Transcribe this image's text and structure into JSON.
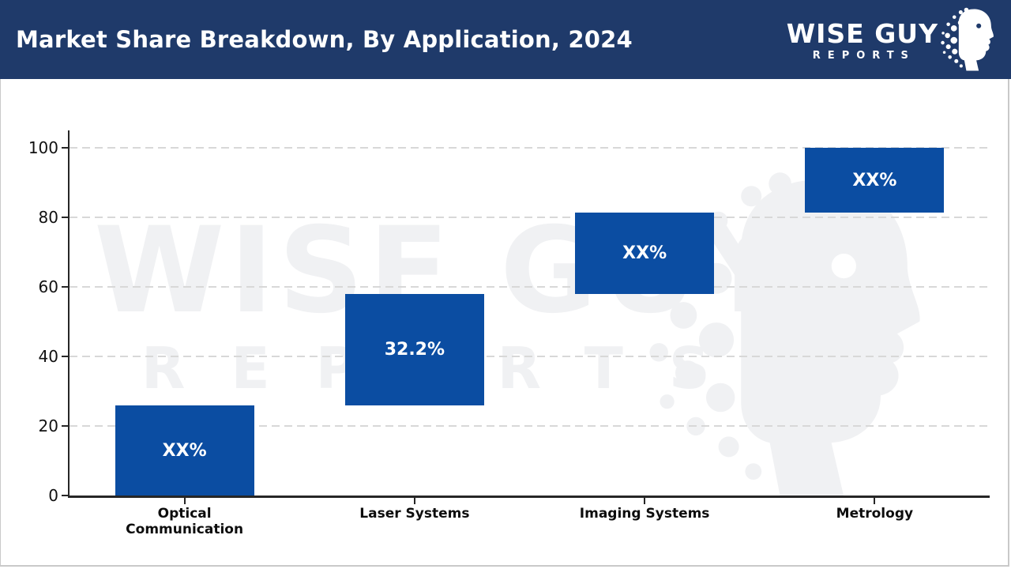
{
  "header": {
    "title": "Market Share Breakdown, By Application, 2024",
    "logo": {
      "line1": "WISE GUY",
      "line2": "REPORTS"
    }
  },
  "watermark": {
    "line1": "WISE GUY",
    "line2": "REPORTS"
  },
  "colors": {
    "header_bg": "#1f3a6a",
    "bar": "#0b4da2",
    "bar_label": "#ffffff",
    "grid": "#d8d8d8",
    "axis": "#262626",
    "tick_text": "#111111",
    "frame_border": "#c9c9c9",
    "watermark": "#f0f1f3"
  },
  "chart_data": {
    "type": "bar",
    "subtype": "waterfall-cumulative-percent",
    "title": "Market Share Breakdown, By Application, 2024",
    "categories": [
      "Optical Communication",
      "Laser Systems",
      "Imaging Systems",
      "Metrology"
    ],
    "series": [
      {
        "name": "Optical Communication",
        "start": 0,
        "end": 25.8,
        "value_label": "XX%"
      },
      {
        "name": "Laser Systems",
        "start": 25.8,
        "end": 58.0,
        "value_label": "32.2%"
      },
      {
        "name": "Imaging Systems",
        "start": 58.0,
        "end": 81.3,
        "value_label": "XX%"
      },
      {
        "name": "Metrology",
        "start": 81.3,
        "end": 100,
        "value_label": "XX%"
      }
    ],
    "ylim": [
      0,
      100
    ],
    "yticks": [
      0,
      20,
      40,
      60,
      80,
      100
    ],
    "grid": "horizontal-dashed",
    "legend": "none",
    "xlabel": "",
    "ylabel": ""
  }
}
